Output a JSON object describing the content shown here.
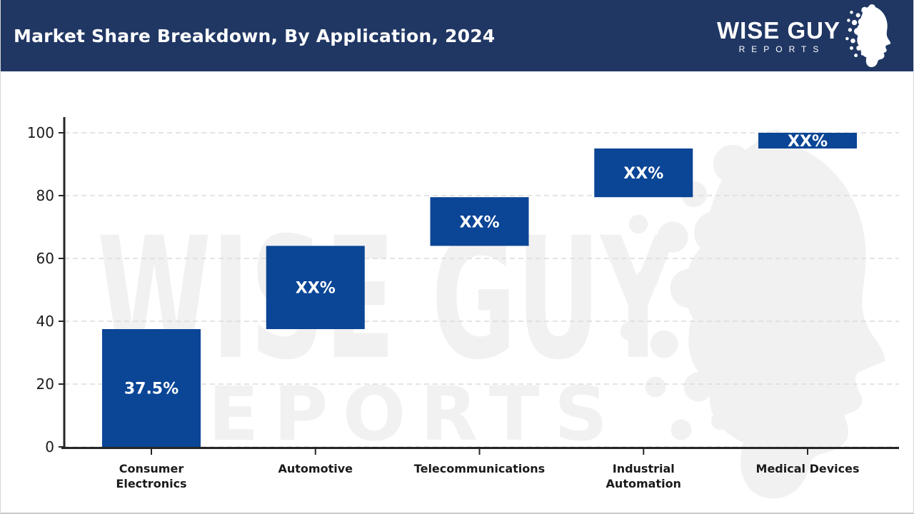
{
  "header": {
    "title": "Market Share Breakdown, By Application, 2024",
    "logo": {
      "name": "WISE GUY",
      "sub": "REPORTS"
    }
  },
  "watermark": {
    "name": "WISE GUY",
    "sub": "REPORTS"
  },
  "chart_data": {
    "type": "bar",
    "subtype": "waterfall",
    "title": "Market Share Breakdown, By Application, 2024",
    "categories": [
      "Consumer Electronics",
      "Automotive",
      "Telecommunications",
      "Industrial Automation",
      "Medical Devices"
    ],
    "category_label_lines": [
      [
        "Consumer",
        "Electronics"
      ],
      [
        "Automotive"
      ],
      [
        "Telecommunications"
      ],
      [
        "Industrial",
        "Automation"
      ],
      [
        "Medical Devices"
      ]
    ],
    "segments": [
      {
        "category": "Consumer Electronics",
        "start": 0,
        "end": 37.5,
        "label": "37.5%"
      },
      {
        "category": "Automotive",
        "start": 37.5,
        "end": 64,
        "label": "XX%"
      },
      {
        "category": "Telecommunications",
        "start": 64,
        "end": 79.5,
        "label": "XX%"
      },
      {
        "category": "Industrial Automation",
        "start": 79.5,
        "end": 95,
        "label": "XX%"
      },
      {
        "category": "Medical Devices",
        "start": 95,
        "end": 100,
        "label": "XX%"
      }
    ],
    "ylim": [
      0,
      100
    ],
    "y_ticks": [
      0,
      20,
      40,
      60,
      80,
      100
    ],
    "xlabel": "",
    "ylabel": "",
    "grid": "horizontal-dashed",
    "legend": "none"
  },
  "colors": {
    "header_bg": "#203764",
    "page_bg": "#ffffff",
    "bar": "#0a4596",
    "value_label": "#ffffff",
    "axis": "#262626",
    "grid": "#dcdcdc",
    "tick_label": "#1a1a1a",
    "watermark": "#f1f1f1"
  }
}
